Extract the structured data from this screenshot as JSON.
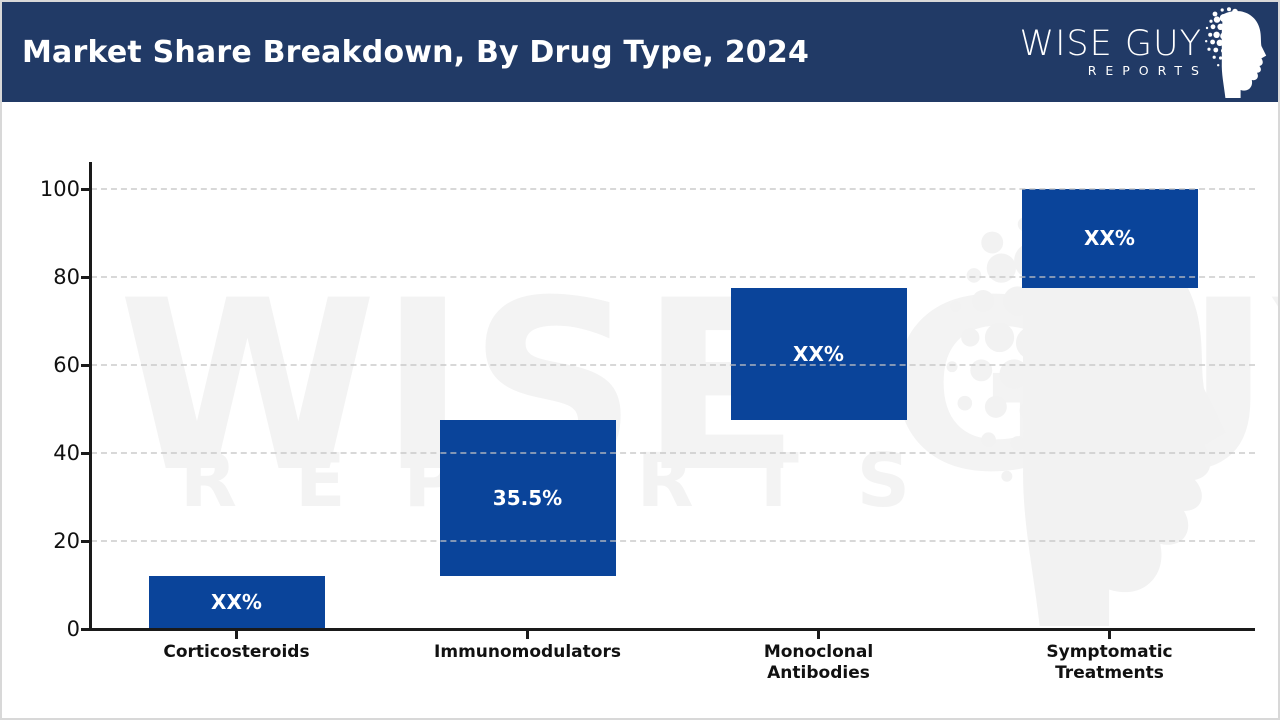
{
  "header": {
    "title": "Market Share Breakdown, By Drug Type, 2024",
    "logo": {
      "line1": "WISE GUY",
      "line2": "REPORTS"
    }
  },
  "watermark": {
    "line1": "WISE GUY",
    "line2": "REPORTS"
  },
  "colors": {
    "header_bg": "#213a66",
    "bar": "#0a449a",
    "bar_label": "#ffffff",
    "axis": "#1a1a1a",
    "tick_text": "#111111",
    "gridline": "#c3c3c3",
    "watermark": "#f2f2f2",
    "frame_border": "#d8d8d8"
  },
  "chart_data": {
    "type": "bar",
    "subtype": "waterfall",
    "title": "Market Share Breakdown, By Drug Type, 2024",
    "categories": [
      "Corticosteroids",
      "Immunomodulators",
      "Monoclonal\nAntibodies",
      "Symptomatic\nTreatments"
    ],
    "bars": [
      {
        "category": "Corticosteroids",
        "label": "XX%",
        "start": 0,
        "end": 12,
        "value_shown": false
      },
      {
        "category": "Immunomodulators",
        "label": "35.5%",
        "start": 12,
        "end": 47.5,
        "value_shown": true,
        "value": 35.5
      },
      {
        "category": "Monoclonal Antibodies",
        "label": "XX%",
        "start": 47.5,
        "end": 77.5,
        "value_shown": false
      },
      {
        "category": "Symptomatic Treatments",
        "label": "XX%",
        "start": 77.5,
        "end": 100,
        "value_shown": false
      }
    ],
    "xlabel": "",
    "ylabel": "",
    "ylim": [
      0,
      100
    ],
    "yticks": [
      0,
      20,
      40,
      60,
      80,
      100
    ],
    "grid": "horizontal-dashed",
    "legend": "none"
  }
}
